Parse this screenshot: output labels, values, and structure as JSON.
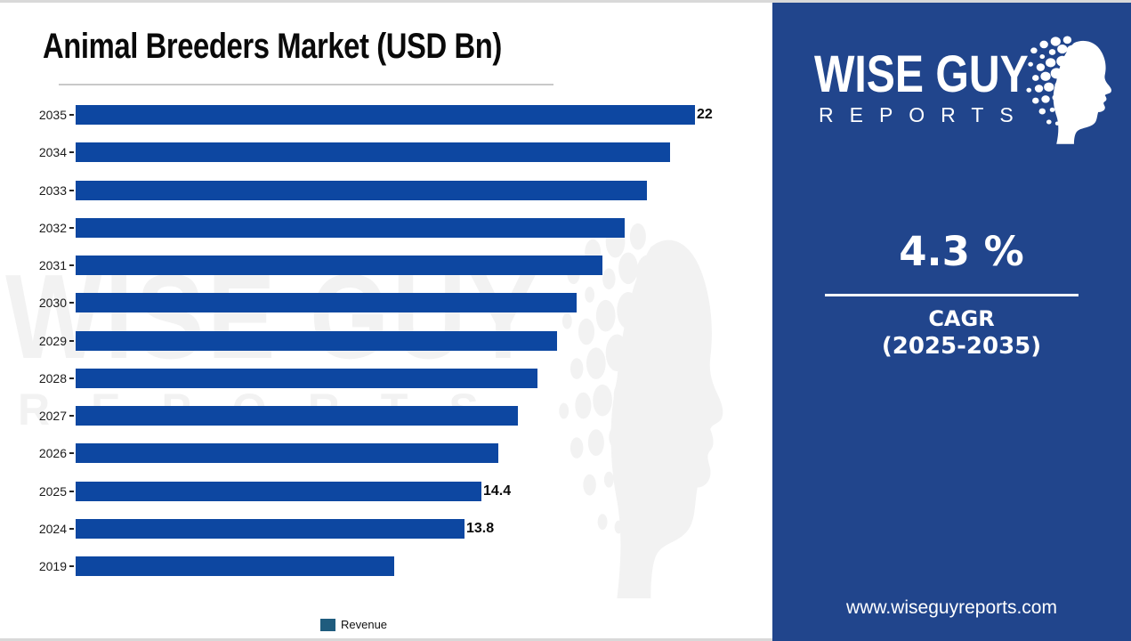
{
  "colors": {
    "bar": "#0D47A1",
    "panel_bg": "#21458C",
    "legend_swatch": "#1F5C7E",
    "title_underline": "#C9C9C9",
    "page_border": "#D9D9D9",
    "watermark": "#F2F2F2",
    "tick": "#262626",
    "white": "#FFFFFF"
  },
  "chart_data": {
    "type": "bar",
    "orientation": "horizontal",
    "title": "Animal Breeders Market (USD Bn)",
    "unit": "USD Bn",
    "categories": [
      "2035",
      "2034",
      "2033",
      "2032",
      "2031",
      "2030",
      "2029",
      "2028",
      "2027",
      "2026",
      "2025",
      "2024",
      "2019"
    ],
    "values": [
      22,
      21.1,
      20.3,
      19.5,
      18.7,
      17.8,
      17.1,
      16.4,
      15.7,
      15.0,
      14.4,
      13.8,
      11.3
    ],
    "data_labels": [
      "22",
      "",
      "",
      "",
      "",
      "",
      "",
      "",
      "",
      "",
      "14.4",
      "13.8",
      ""
    ],
    "xlim": [
      0,
      24
    ],
    "grid": false,
    "legend_position": "bottom",
    "legend": [
      {
        "label": "Revenue",
        "color": "#1F5C7E"
      }
    ]
  },
  "watermark": {
    "line1": "WISE GUY",
    "line2": "REPORTS"
  },
  "sidebar": {
    "logo_line1": "WISE GUY",
    "logo_line2": "REPORTS",
    "cagr_value": "4.3 %",
    "cagr_label_line1": "CAGR",
    "cagr_label_line2": "(2025-2035)",
    "website": "www.wiseguyreports.com"
  }
}
